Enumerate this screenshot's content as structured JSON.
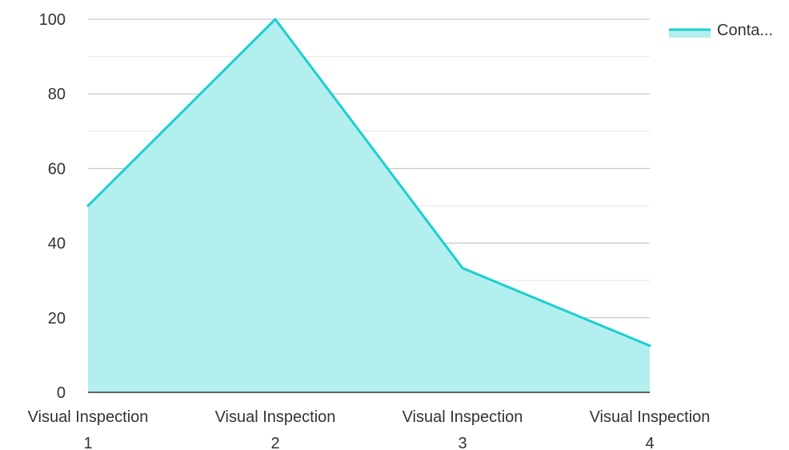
{
  "chart_data": {
    "type": "area",
    "categories": [
      [
        "Visual Inspection",
        "1"
      ],
      [
        "Visual Inspection",
        "2"
      ],
      [
        "Visual Inspection",
        "3"
      ],
      [
        "Visual Inspection",
        "4"
      ]
    ],
    "series": [
      {
        "name": "Conta...",
        "values": [
          50,
          100,
          33.3,
          12.5
        ]
      }
    ],
    "ylim": [
      0,
      100
    ],
    "yticks": [
      0,
      20,
      40,
      60,
      80,
      100
    ],
    "grid": true,
    "minor_grid": true,
    "legend": "top-right",
    "colors": {
      "line": "#1ccfcf",
      "fill": "#b2efee",
      "grid_major": "#bdbdbd",
      "grid_minor": "#e6e6e6",
      "axis": "#333333"
    }
  }
}
